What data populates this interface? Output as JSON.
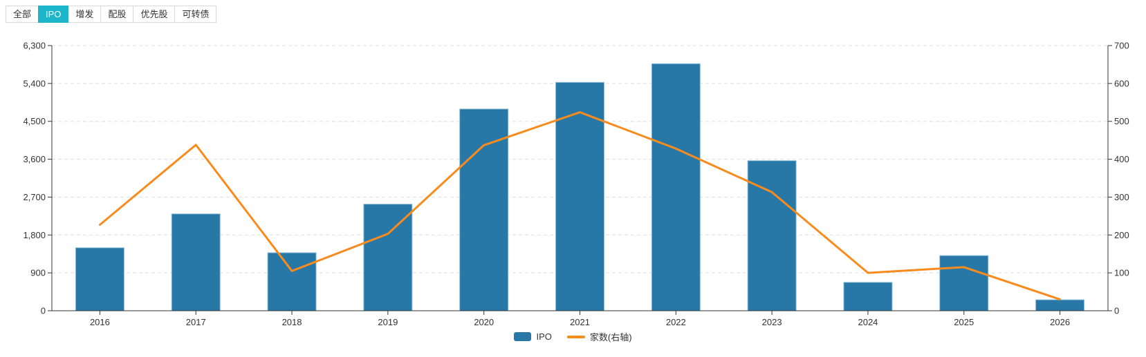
{
  "tabs": {
    "items": [
      {
        "label": "全部",
        "active": false
      },
      {
        "label": "IPO",
        "active": true
      },
      {
        "label": "增发",
        "active": false
      },
      {
        "label": "配股",
        "active": false
      },
      {
        "label": "优先股",
        "active": false
      },
      {
        "label": "可转债",
        "active": false
      }
    ],
    "active_bg": "#1cb5c9"
  },
  "legend": {
    "bar_label": "IPO",
    "line_label": "家数(右轴)"
  },
  "colors": {
    "bar_fill": "#2778a7",
    "bar_edge": "#8fbfd9",
    "line_stroke": "#f98b1d",
    "grid": "#dddddd",
    "axis": "#333333",
    "text": "#333333"
  },
  "chart_data": {
    "type": "bar",
    "subtype": "dual-axis bar + line",
    "categories": [
      "2016",
      "2017",
      "2018",
      "2019",
      "2020",
      "2021",
      "2022",
      "2023",
      "2024",
      "2025",
      "2026"
    ],
    "series": [
      {
        "name": "IPO",
        "type": "bar",
        "axis": "left",
        "values": [
          1496,
          2301,
          1378,
          2532,
          4793,
          5426,
          5869,
          3565,
          675,
          1310,
          260
        ]
      },
      {
        "name": "家数(右轴)",
        "type": "line",
        "axis": "right",
        "values": [
          227,
          438,
          105,
          203,
          437,
          524,
          428,
          313,
          100,
          115,
          30
        ]
      }
    ],
    "left_axis": {
      "min": 0,
      "max": 6300,
      "step": 900,
      "tick_labels": [
        "0",
        "900",
        "1,800",
        "2,700",
        "3,600",
        "4,500",
        "5,400",
        "6,300"
      ]
    },
    "right_axis": {
      "min": 0,
      "max": 700,
      "step": 100,
      "tick_labels": [
        "0",
        "100",
        "200",
        "300",
        "400",
        "500",
        "600",
        "700"
      ]
    },
    "grid": "horizontal dashed",
    "legend_position": "bottom-center",
    "title": "",
    "xlabel": "",
    "ylabel": ""
  }
}
